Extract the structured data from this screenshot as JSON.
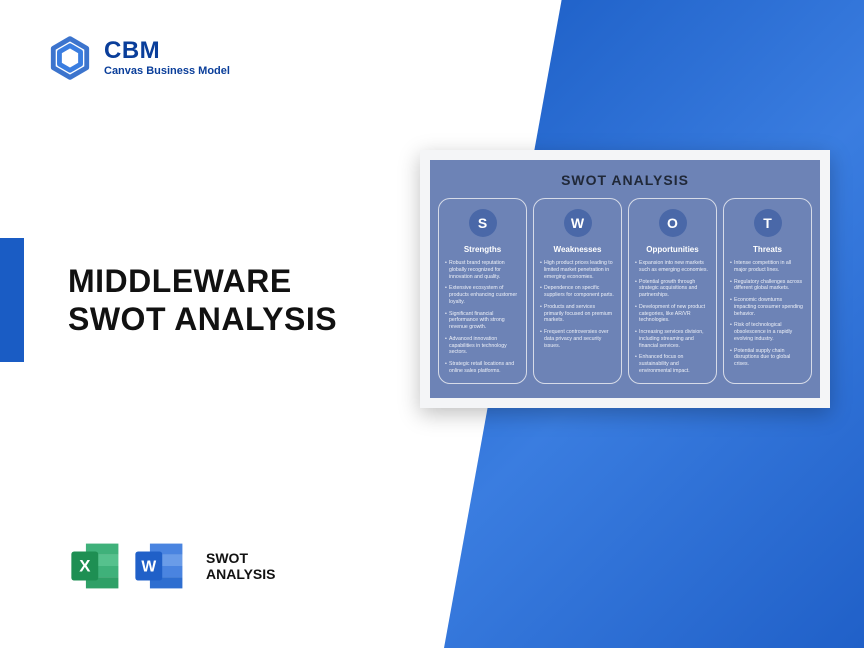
{
  "brand": {
    "name": "CBM",
    "tagline": "Canvas Business Model",
    "logo_color": "#1a5cc4"
  },
  "main_title_line1": "MIDDLEWARE",
  "main_title_line2": "SWOT ANALYSIS",
  "app_icons_label_line1": "SWOT",
  "app_icons_label_line2": "ANALYSIS",
  "excel_icon": {
    "primary": "#1e8f53",
    "secondary": "#3fb17a",
    "tile": "#1e8f53",
    "letter": "X"
  },
  "word_icon": {
    "primary": "#2060c8",
    "secondary": "#4a84e0",
    "tile": "#2060c8",
    "letter": "W"
  },
  "swot": {
    "panel_bg": "#f4f5f7",
    "inner_bg": "#6d83b6",
    "circle_bg": "#4a68a8",
    "border_color": "#d6dbe8",
    "title": "SWOT ANALYSIS",
    "columns": [
      {
        "letter": "S",
        "heading": "Strengths",
        "items": [
          "Robust brand reputation globally recognized for innovation and quality.",
          "Extensive ecosystem of products enhancing customer loyalty.",
          "Significant financial performance with strong revenue growth.",
          "Advanced innovation capabilities in technology sectors.",
          "Strategic retail locations and online sales platforms."
        ]
      },
      {
        "letter": "W",
        "heading": "Weaknesses",
        "items": [
          "High product prices leading to limited market penetration in emerging economies.",
          "Dependence on specific suppliers for component parts.",
          "Products and services primarily focused on premium markets.",
          "Frequent controversies over data privacy and security issues."
        ]
      },
      {
        "letter": "O",
        "heading": "Opportunities",
        "items": [
          "Expansion into new markets such as emerging economies.",
          "Potential growth through strategic acquisitions and partnerships.",
          "Development of new product categories, like AR/VR technologies.",
          "Increasing services division, including streaming and financial services.",
          "Enhanced focus on sustainability and environmental impact."
        ]
      },
      {
        "letter": "T",
        "heading": "Threats",
        "items": [
          "Intense competition in all major product lines.",
          "Regulatory challenges across different global markets.",
          "Economic downturns impacting consumer spending behavior.",
          "Risk of technological obsolescence in a rapidly evolving industry.",
          "Potential supply chain disruptions due to global crises."
        ]
      }
    ]
  },
  "colors": {
    "diagonal_bg": "#1a5cc4",
    "accent": "#1a5cc4",
    "text": "#111111"
  }
}
